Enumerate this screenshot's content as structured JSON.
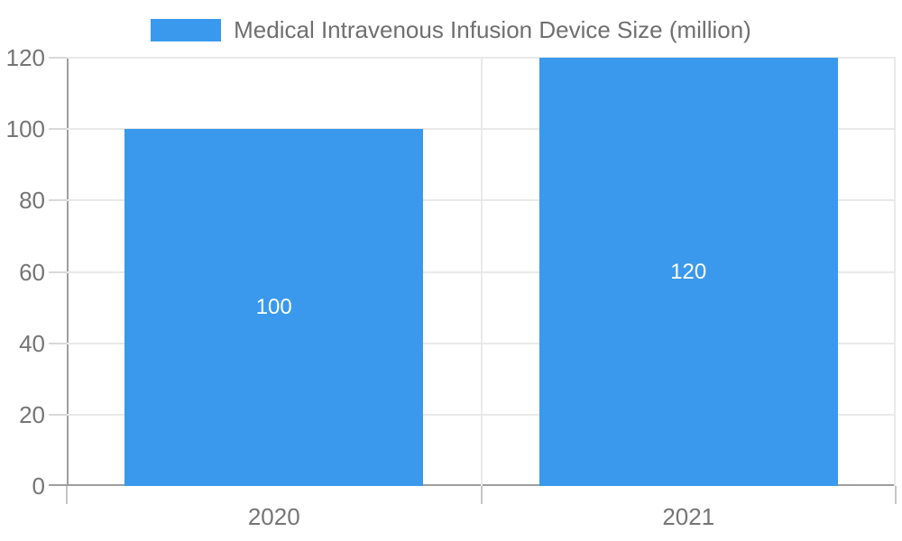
{
  "legend": {
    "label": "Medical Intravenous Infusion Device Size (million)",
    "position": "top"
  },
  "chart_data": {
    "type": "bar",
    "title": "Medical Intravenous Infusion Device Size (million)",
    "categories": [
      "2020",
      "2021"
    ],
    "values": [
      100,
      120
    ],
    "data_labels": [
      "100",
      "120"
    ],
    "xlabel": "",
    "ylabel": "",
    "ylim": [
      0,
      120
    ],
    "yticks": [
      0,
      20,
      40,
      60,
      80,
      100,
      120
    ],
    "grid": true,
    "legend_position": "top",
    "colors": {
      "bar": "#3A99EC",
      "data_label": "#ffffff",
      "tick_label": "#757575",
      "legend_text": "#6f6f6f",
      "gridline": "#e9e9e9",
      "tick_mark": "#d9d9d9",
      "x_tick_mark": "#c6c6c6",
      "axis": "#9e9e9e",
      "background": "#ffffff"
    }
  }
}
